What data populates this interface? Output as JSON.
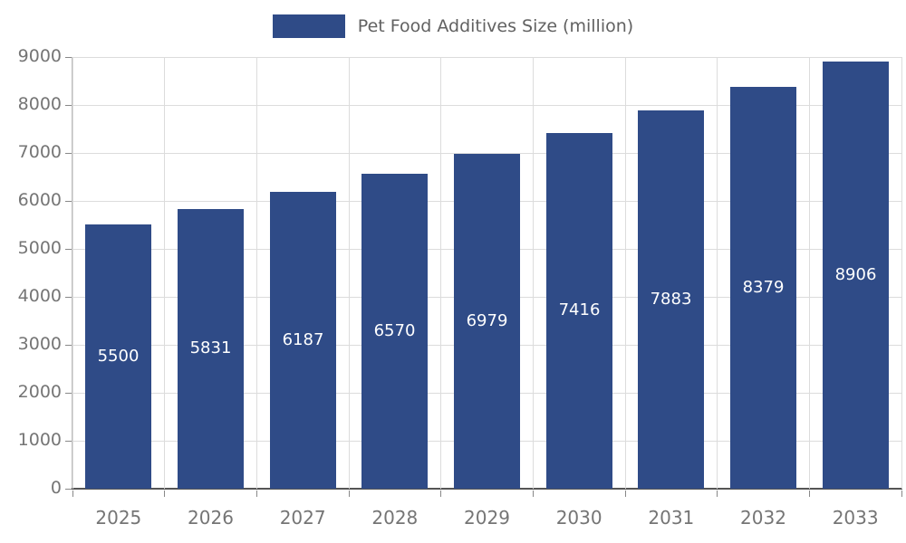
{
  "chart_data": {
    "type": "bar",
    "title": "Pet Food Additives Size (million)",
    "categories": [
      "2025",
      "2026",
      "2027",
      "2028",
      "2029",
      "2030",
      "2031",
      "2032",
      "2033"
    ],
    "values": [
      5500,
      5831,
      6187,
      6570,
      6979,
      7416,
      7883,
      8379,
      8906
    ],
    "xlabel": "",
    "ylabel": "",
    "ylim": [
      0,
      9000
    ],
    "ytick_step": 1000,
    "grid": true,
    "legend_position": "top",
    "colors": {
      "bar": "#2F4B87",
      "value_label": "#ffffff",
      "axis_text": "#757575",
      "title_text": "#616161",
      "gridline": "#dcdcdc"
    }
  }
}
